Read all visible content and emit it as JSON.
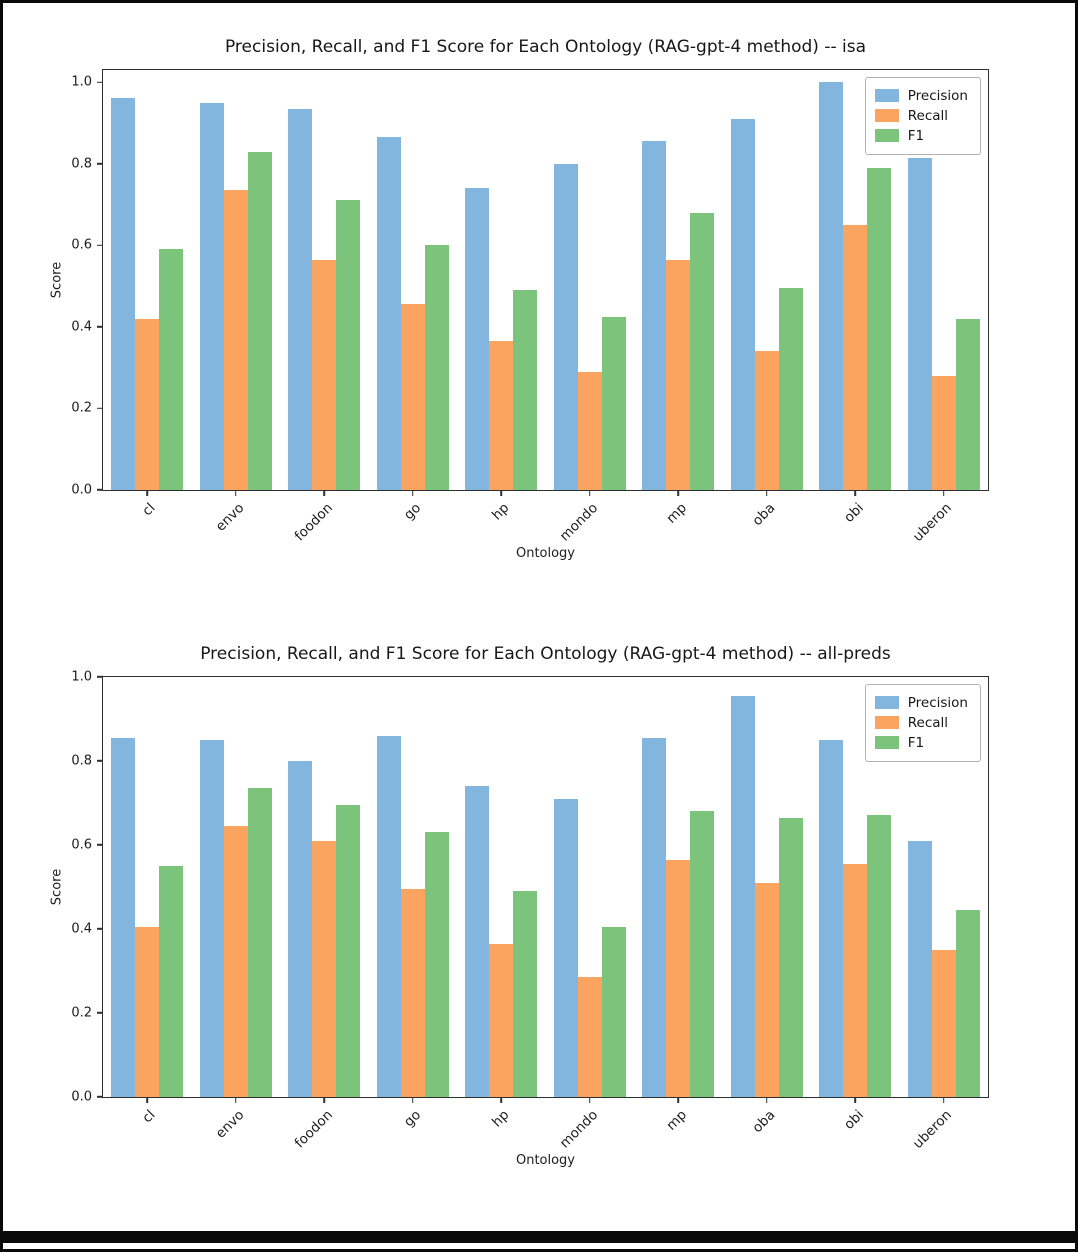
{
  "frame": {
    "background": "#ffffff",
    "border_color": "#0a0a0a"
  },
  "chart_data": [
    {
      "type": "bar",
      "title": "Precision, Recall, and F1 Score for Each Ontology (RAG-gpt-4 method) -- isa",
      "xlabel": "Ontology",
      "ylabel": "Score",
      "ylim": [
        0,
        1.03
      ],
      "yticks": [
        0.0,
        0.2,
        0.4,
        0.6,
        0.8,
        1.0
      ],
      "grid": false,
      "legend_position": "upper right",
      "categories": [
        "cl",
        "envo",
        "foodon",
        "go",
        "hp",
        "mondo",
        "mp",
        "oba",
        "obi",
        "uberon"
      ],
      "series": [
        {
          "name": "Precision",
          "color": "#82b6de",
          "values": [
            0.96,
            0.95,
            0.935,
            0.865,
            0.74,
            0.8,
            0.855,
            0.91,
            1.0,
            0.815
          ]
        },
        {
          "name": "Recall",
          "color": "#fba45f",
          "values": [
            0.42,
            0.735,
            0.565,
            0.455,
            0.365,
            0.29,
            0.565,
            0.34,
            0.65,
            0.28
          ]
        },
        {
          "name": "F1",
          "color": "#7cc47c",
          "values": [
            0.59,
            0.83,
            0.71,
            0.6,
            0.49,
            0.425,
            0.68,
            0.495,
            0.79,
            0.42
          ]
        }
      ]
    },
    {
      "type": "bar",
      "title": "Precision, Recall, and F1 Score for Each Ontology (RAG-gpt-4 method) -- all-preds",
      "xlabel": "Ontology",
      "ylabel": "Score",
      "ylim": [
        0,
        1.0
      ],
      "yticks": [
        0.0,
        0.2,
        0.4,
        0.6,
        0.8,
        1.0
      ],
      "grid": false,
      "legend_position": "upper right",
      "categories": [
        "cl",
        "envo",
        "foodon",
        "go",
        "hp",
        "mondo",
        "mp",
        "oba",
        "obi",
        "uberon"
      ],
      "series": [
        {
          "name": "Precision",
          "color": "#82b6de",
          "values": [
            0.855,
            0.85,
            0.8,
            0.86,
            0.74,
            0.71,
            0.855,
            0.955,
            0.85,
            0.61
          ]
        },
        {
          "name": "Recall",
          "color": "#fba45f",
          "values": [
            0.405,
            0.645,
            0.61,
            0.495,
            0.365,
            0.285,
            0.565,
            0.51,
            0.555,
            0.35
          ]
        },
        {
          "name": "F1",
          "color": "#7cc47c",
          "values": [
            0.55,
            0.735,
            0.695,
            0.63,
            0.49,
            0.405,
            0.68,
            0.665,
            0.67,
            0.445
          ]
        }
      ]
    }
  ]
}
